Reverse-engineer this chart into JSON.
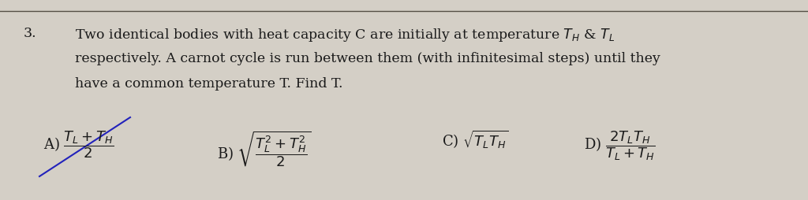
{
  "background_color": "#d4cfc6",
  "text_color": "#1a1a1a",
  "question_number": "3.",
  "line1": "Two identical bodies with heat capacity C are initially at temperature $T_H$ & $T_L$",
  "line2": "respectively. A carnot cycle is run between them (with infinitesimal steps) until they",
  "line3": "have a common temperature T. Find T.",
  "option_A": "A) $\\dfrac{T_L + T_H}{2}$",
  "option_B": "B) $\\sqrt{\\dfrac{T_L^2 + T_H^2}{2}}$",
  "option_C": "C) $\\sqrt{T_L T_H}$",
  "option_D": "D) $\\dfrac{2T_L T_H}{T_L + T_H}$",
  "font_size_text": 12.5,
  "font_size_options": 13,
  "fig_width": 10.24,
  "fig_height": 2.54,
  "dpi": 100,
  "line_color": "#555045",
  "blue_line_color": "#2222bb"
}
